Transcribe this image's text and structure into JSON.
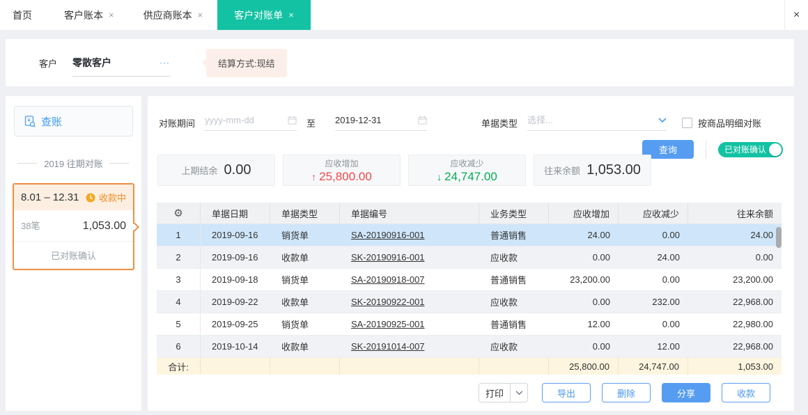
{
  "icons": {
    "close": "×",
    "more": "···"
  },
  "tabs": [
    {
      "label": "首页",
      "closable": false,
      "active": false
    },
    {
      "label": "客户账本",
      "closable": true,
      "active": false
    },
    {
      "label": "供应商账本",
      "closable": true,
      "active": false
    },
    {
      "label": "客户对账单",
      "closable": true,
      "active": true
    }
  ],
  "customer_bar": {
    "label": "客户",
    "value": "零散客户",
    "tooltip": "结算方式:现结"
  },
  "sidebar": {
    "check_button": "查账",
    "section_title": "2019 往期对账",
    "card": {
      "period": "8.01 – 12.31",
      "status": "收款中",
      "count": "38笔",
      "amount": "1,053.00",
      "footer": "已对账确认"
    }
  },
  "filters": {
    "period_label": "对账期间",
    "date_from_placeholder": "yyyy-mm-dd",
    "to_label": "至",
    "date_to_value": "2019-12-31",
    "doc_type_label": "单据类型",
    "doc_type_placeholder": "选择...",
    "detail_checkbox_label": "按商品明细对账",
    "query_button": "查询",
    "confirmed_toggle": "已对账确认"
  },
  "summary": [
    {
      "label": "上期结余",
      "value": "0.00"
    },
    {
      "label": "应收增加",
      "value": "25,800.00",
      "arrow": "↑",
      "trend": "up"
    },
    {
      "label": "应收减少",
      "value": "24,747.00",
      "arrow": "↓",
      "trend": "down"
    },
    {
      "label": "往来余额",
      "value": "1,053.00"
    }
  ],
  "table": {
    "headers": [
      "单据日期",
      "单据类型",
      "单据编号",
      "业务类型",
      "应收增加",
      "应收减少",
      "往来余额"
    ],
    "rows": [
      {
        "index": "1",
        "date": "2019-09-16",
        "type": "销货单",
        "number": "SA-20190916-001",
        "biz": "普通销售",
        "increase": "24.00",
        "decrease": "0.00",
        "balance": "24.00",
        "selected": true
      },
      {
        "index": "2",
        "date": "2019-09-16",
        "type": "收款单",
        "number": "SK-20190916-001",
        "biz": "应收款",
        "increase": "0.00",
        "decrease": "24.00",
        "balance": "0.00"
      },
      {
        "index": "3",
        "date": "2019-09-18",
        "type": "销货单",
        "number": "SA-20190918-007",
        "biz": "普通销售",
        "increase": "23,200.00",
        "decrease": "0.00",
        "balance": "23,200.00"
      },
      {
        "index": "4",
        "date": "2019-09-22",
        "type": "收款单",
        "number": "SK-20190922-001",
        "biz": "应收款",
        "increase": "0.00",
        "decrease": "232.00",
        "balance": "22,968.00"
      },
      {
        "index": "5",
        "date": "2019-09-25",
        "type": "销货单",
        "number": "SA-20190925-001",
        "biz": "普通销售",
        "increase": "12.00",
        "decrease": "0.00",
        "balance": "22,980.00"
      },
      {
        "index": "6",
        "date": "2019-10-14",
        "type": "收款单",
        "number": "SK-20191014-007",
        "biz": "应收款",
        "increase": "0.00",
        "decrease": "12.00",
        "balance": "22,968.00"
      }
    ],
    "total": {
      "label": "合计:",
      "increase": "25,800.00",
      "decrease": "24,747.00",
      "balance": "1,053.00"
    }
  },
  "footer_actions": {
    "print": "打印",
    "export": "导出",
    "delete": "删除",
    "share": "分享",
    "receive": "收款"
  },
  "colors": {
    "accent_green": "#13c2a3",
    "accent_blue": "#569df2",
    "increase_red": "#f5464a",
    "decrease_green": "#00ad52",
    "warn_orange": "#ef8e42"
  }
}
